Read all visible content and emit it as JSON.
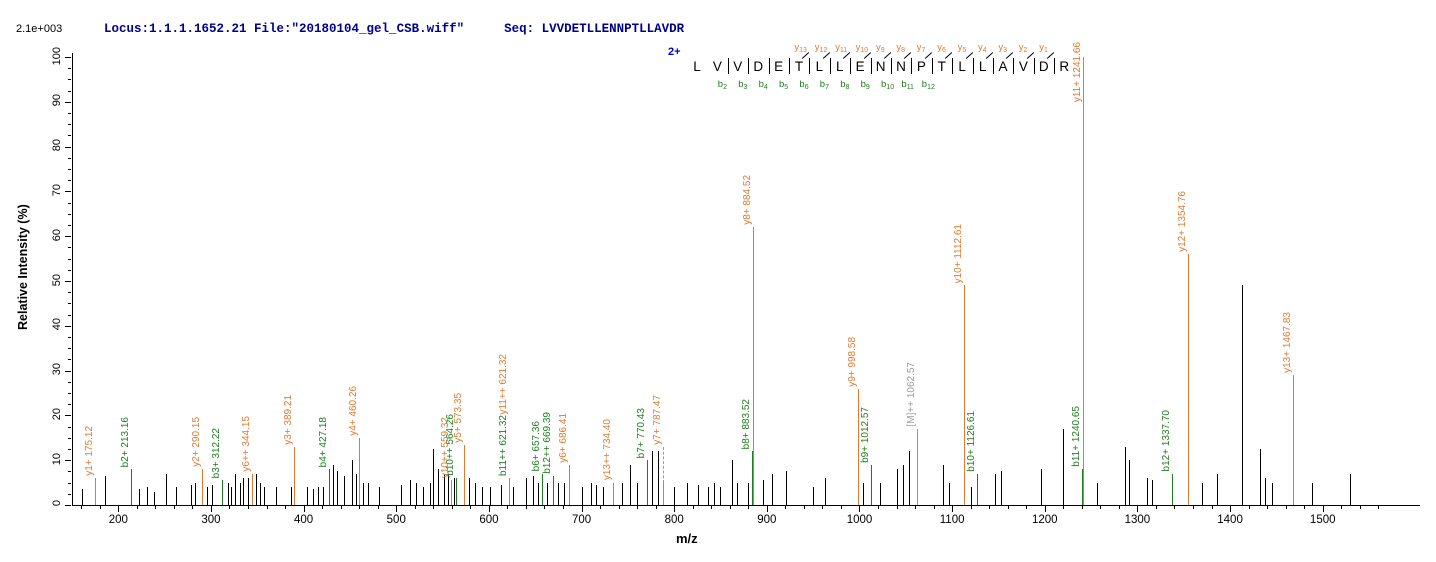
{
  "header": {
    "locus_file": "Locus:1.1.1.1652.21 File:\"20180104_gel_CSB.wiff\"",
    "seq_label": "Seq:",
    "sequence": "LVVDETLLENNPTLLAVDR"
  },
  "scale_label": "2.1e+003",
  "colors": {
    "y_ion": "#e07a33",
    "b_ion": "#1e7d1e",
    "precursor": "#9a9a9a",
    "noise": "#000000",
    "header_text": "#00008b",
    "charge_label": "#0000dd",
    "axis": "#000000"
  },
  "annotation": {
    "charge_label": "2+",
    "peptide": "LVVDETLLENNPTLLAVDR",
    "y_ion_marks": [
      {
        "cleavage_after": 6,
        "ion": "y13"
      },
      {
        "cleavage_after": 7,
        "ion": "y12"
      },
      {
        "cleavage_after": 8,
        "ion": "y11"
      },
      {
        "cleavage_after": 9,
        "ion": "y10"
      },
      {
        "cleavage_after": 10,
        "ion": "y9"
      },
      {
        "cleavage_after": 11,
        "ion": "y8"
      },
      {
        "cleavage_after": 12,
        "ion": "y7"
      },
      {
        "cleavage_after": 13,
        "ion": "y6"
      },
      {
        "cleavage_after": 14,
        "ion": "y5"
      },
      {
        "cleavage_after": 15,
        "ion": "y4"
      },
      {
        "cleavage_after": 16,
        "ion": "y3"
      },
      {
        "cleavage_after": 17,
        "ion": "y2"
      },
      {
        "cleavage_after": 18,
        "ion": "y1"
      }
    ],
    "b_ion_marks": [
      {
        "cleavage_after": 2,
        "ion": "b2"
      },
      {
        "cleavage_after": 3,
        "ion": "b3"
      },
      {
        "cleavage_after": 4,
        "ion": "b4"
      },
      {
        "cleavage_after": 5,
        "ion": "b5"
      },
      {
        "cleavage_after": 6,
        "ion": "b6"
      },
      {
        "cleavage_after": 7,
        "ion": "b7"
      },
      {
        "cleavage_after": 8,
        "ion": "b8"
      },
      {
        "cleavage_after": 9,
        "ion": "b9"
      },
      {
        "cleavage_after": 10,
        "ion": "b10"
      },
      {
        "cleavage_after": 11,
        "ion": "b11"
      },
      {
        "cleavage_after": 12,
        "ion": "b12"
      }
    ]
  },
  "axes": {
    "x": {
      "label": "m/z",
      "min": 150,
      "max": 1605,
      "major_ticks": [
        200,
        300,
        400,
        500,
        600,
        700,
        800,
        900,
        1000,
        1100,
        1200,
        1300,
        1400,
        1500
      ],
      "minor_step": 20,
      "minor_min": 160,
      "minor_max": 1560
    },
    "y": {
      "label": "Relative Intensity (%)",
      "min": 0,
      "max": 100,
      "major_step": 10,
      "minor_step": 2.5,
      "top_scale": "2.1e+003"
    }
  },
  "chart_data": {
    "type": "bar",
    "subtype": "ms2_fragment_spectrum",
    "title": "Locus:1.1.1.1652.21 File:\"20180104_gel_CSB.wiff\" Seq: LVVDETLLENNPTLLAVDR",
    "xlabel": "m/z",
    "ylabel": "Relative Intensity (%)",
    "xlim": [
      150,
      1605
    ],
    "ylim": [
      0,
      100
    ],
    "grid": false,
    "legend": false,
    "intensity_full_scale": "2.1e+003",
    "precursor_charge": "2+",
    "peptide": "LVVDETLLENNPTLLAVDR",
    "y_ion_peaks": [
      {
        "label": "y1+",
        "mz": 175.12,
        "rel_int": 6
      },
      {
        "label": "y2+",
        "mz": 290.15,
        "rel_int": 8
      },
      {
        "label": "y6++",
        "mz": 344.15,
        "rel_int": 7
      },
      {
        "label": "y3+",
        "mz": 389.21,
        "rel_int": 13
      },
      {
        "label": "y4+",
        "mz": 460.26,
        "rel_int": 15
      },
      {
        "label": "y10++",
        "mz": 559.32,
        "rel_int": 5.5
      },
      {
        "label": "y5+",
        "mz": 573.35,
        "rel_int": 13.5
      },
      {
        "label": "y11++",
        "mz": 621.32,
        "rel_int": 6,
        "label_lift": 62
      },
      {
        "label": "y6+",
        "mz": 686.41,
        "rel_int": 9
      },
      {
        "label": "y13++",
        "mz": 734.4,
        "rel_int": 5
      },
      {
        "label": "y7+",
        "mz": 787.47,
        "rel_int": 5,
        "dash_to": 13
      },
      {
        "label": "y8+",
        "mz": 884.52,
        "rel_int": 62
      },
      {
        "label": "y9+",
        "mz": 998.58,
        "rel_int": 26
      },
      {
        "label": "y10+",
        "mz": 1112.61,
        "rel_int": 49
      },
      {
        "label": "y11+",
        "mz": 1241.66,
        "rel_int": 100
      },
      {
        "label": "y12+",
        "mz": 1354.76,
        "rel_int": 56
      },
      {
        "label": "y13+",
        "mz": 1467.83,
        "rel_int": 29
      }
    ],
    "b_ion_peaks": [
      {
        "label": "b2+",
        "mz": 213.16,
        "rel_int": 8
      },
      {
        "label": "b3+",
        "mz": 312.22,
        "rel_int": 5.5
      },
      {
        "label": "b4+",
        "mz": 427.18,
        "rel_int": 8
      },
      {
        "label": "b10++",
        "mz": 564.26,
        "rel_int": 6
      },
      {
        "label": "b11++",
        "mz": 621.32,
        "rel_int": 6
      },
      {
        "label": "b6+",
        "mz": 657.36,
        "rel_int": 7
      },
      {
        "label": "b12++",
        "mz": 669.39,
        "rel_int": 6.5
      },
      {
        "label": "b7+",
        "mz": 770.43,
        "rel_int": 10
      },
      {
        "label": "b8+",
        "mz": 883.52,
        "rel_int": 12
      },
      {
        "label": "b9+",
        "mz": 1012.57,
        "rel_int": 9
      },
      {
        "label": "b10+",
        "mz": 1126.61,
        "rel_int": 7
      },
      {
        "label": "b11+",
        "mz": 1240.65,
        "rel_int": 8
      },
      {
        "label": "b12+",
        "mz": 1337.7,
        "rel_int": 7
      }
    ],
    "precursor_peaks": [
      {
        "label": "[M]++",
        "mz": 1062.57,
        "rel_int": 17
      }
    ],
    "unassigned_peaks": [
      [
        161,
        3.5
      ],
      [
        186,
        6.5
      ],
      [
        222,
        3.5
      ],
      [
        231,
        4
      ],
      [
        238,
        3
      ],
      [
        252,
        7
      ],
      [
        262,
        4
      ],
      [
        278,
        4.5
      ],
      [
        283,
        5
      ],
      [
        296,
        4
      ],
      [
        301,
        4.5
      ],
      [
        318,
        5
      ],
      [
        322,
        4
      ],
      [
        326,
        7
      ],
      [
        331,
        5
      ],
      [
        335,
        6
      ],
      [
        340,
        6
      ],
      [
        349,
        7
      ],
      [
        353,
        5
      ],
      [
        357,
        4
      ],
      [
        370,
        4
      ],
      [
        386,
        4
      ],
      [
        404,
        4
      ],
      [
        410,
        3.5
      ],
      [
        416,
        4
      ],
      [
        421,
        4
      ],
      [
        432,
        9
      ],
      [
        436,
        7.5
      ],
      [
        444,
        6.5
      ],
      [
        452,
        10
      ],
      [
        457,
        7
      ],
      [
        464,
        5
      ],
      [
        470,
        5
      ],
      [
        481,
        4
      ],
      [
        505,
        4.5
      ],
      [
        515,
        5.5
      ],
      [
        521,
        5
      ],
      [
        529,
        4
      ],
      [
        536,
        5
      ],
      [
        540,
        12.5
      ],
      [
        545,
        8
      ],
      [
        551,
        7
      ],
      [
        556,
        7
      ],
      [
        562,
        6
      ],
      [
        578,
        6
      ],
      [
        585,
        5
      ],
      [
        593,
        4
      ],
      [
        601,
        4
      ],
      [
        613,
        4.5
      ],
      [
        626,
        4
      ],
      [
        640,
        6
      ],
      [
        648,
        6.5
      ],
      [
        653,
        5
      ],
      [
        663,
        5
      ],
      [
        675,
        5
      ],
      [
        681,
        5
      ],
      [
        700,
        4
      ],
      [
        710,
        5
      ],
      [
        716,
        4.5
      ],
      [
        723,
        4
      ],
      [
        744,
        5
      ],
      [
        752,
        9
      ],
      [
        760,
        5
      ],
      [
        776,
        12
      ],
      [
        783,
        12
      ],
      [
        800,
        4
      ],
      [
        814,
        5
      ],
      [
        826,
        4.5
      ],
      [
        836,
        4
      ],
      [
        843,
        5
      ],
      [
        849,
        4
      ],
      [
        862,
        10
      ],
      [
        868,
        5
      ],
      [
        880,
        5
      ],
      [
        896,
        5.5
      ],
      [
        906,
        7
      ],
      [
        921,
        7.5
      ],
      [
        950,
        4
      ],
      [
        963,
        6
      ],
      [
        1004,
        5
      ],
      [
        1022,
        5
      ],
      [
        1040,
        8
      ],
      [
        1047,
        9
      ],
      [
        1053,
        12
      ],
      [
        1090,
        9
      ],
      [
        1097,
        5
      ],
      [
        1120,
        4
      ],
      [
        1146,
        7
      ],
      [
        1153,
        7.5
      ],
      [
        1196,
        8
      ],
      [
        1220,
        17
      ],
      [
        1256,
        5
      ],
      [
        1287,
        13
      ],
      [
        1291,
        10
      ],
      [
        1310,
        6
      ],
      [
        1316,
        5.5
      ],
      [
        1370,
        5
      ],
      [
        1386,
        7
      ],
      [
        1413,
        49
      ],
      [
        1432,
        12.5
      ],
      [
        1438,
        6
      ],
      [
        1445,
        5
      ],
      [
        1488,
        5
      ],
      [
        1529,
        7
      ]
    ]
  }
}
